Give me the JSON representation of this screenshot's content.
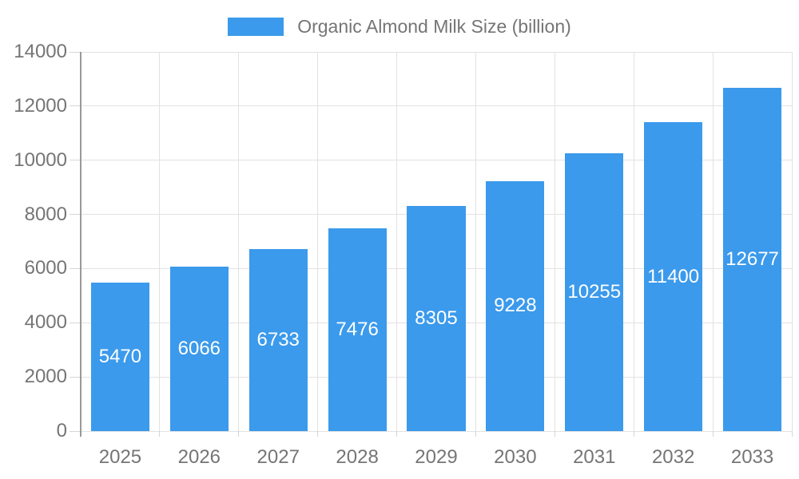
{
  "chart_data": {
    "type": "bar",
    "title": "Organic Almond Milk Size (billion)",
    "categories": [
      "2025",
      "2026",
      "2027",
      "2028",
      "2029",
      "2030",
      "2031",
      "2032",
      "2033"
    ],
    "values": [
      5470,
      6066,
      6733,
      7476,
      8305,
      9228,
      10255,
      11400,
      12677
    ],
    "xlabel": "",
    "ylabel": "",
    "ylim": [
      0,
      14000
    ],
    "ytick_step": 2000,
    "yticks": [
      0,
      2000,
      4000,
      6000,
      8000,
      10000,
      12000,
      14000
    ],
    "grid": true,
    "legend_position": "top",
    "bar_labels_inside": true,
    "colors": {
      "bar": "#3B9AEB",
      "gridline": "#E2E2E2",
      "tick": "#D6D6D6",
      "axis_line": "#999999",
      "tick_label": "#757575",
      "bar_label": "#FFFFFF",
      "background": "#FFFFFF"
    }
  }
}
